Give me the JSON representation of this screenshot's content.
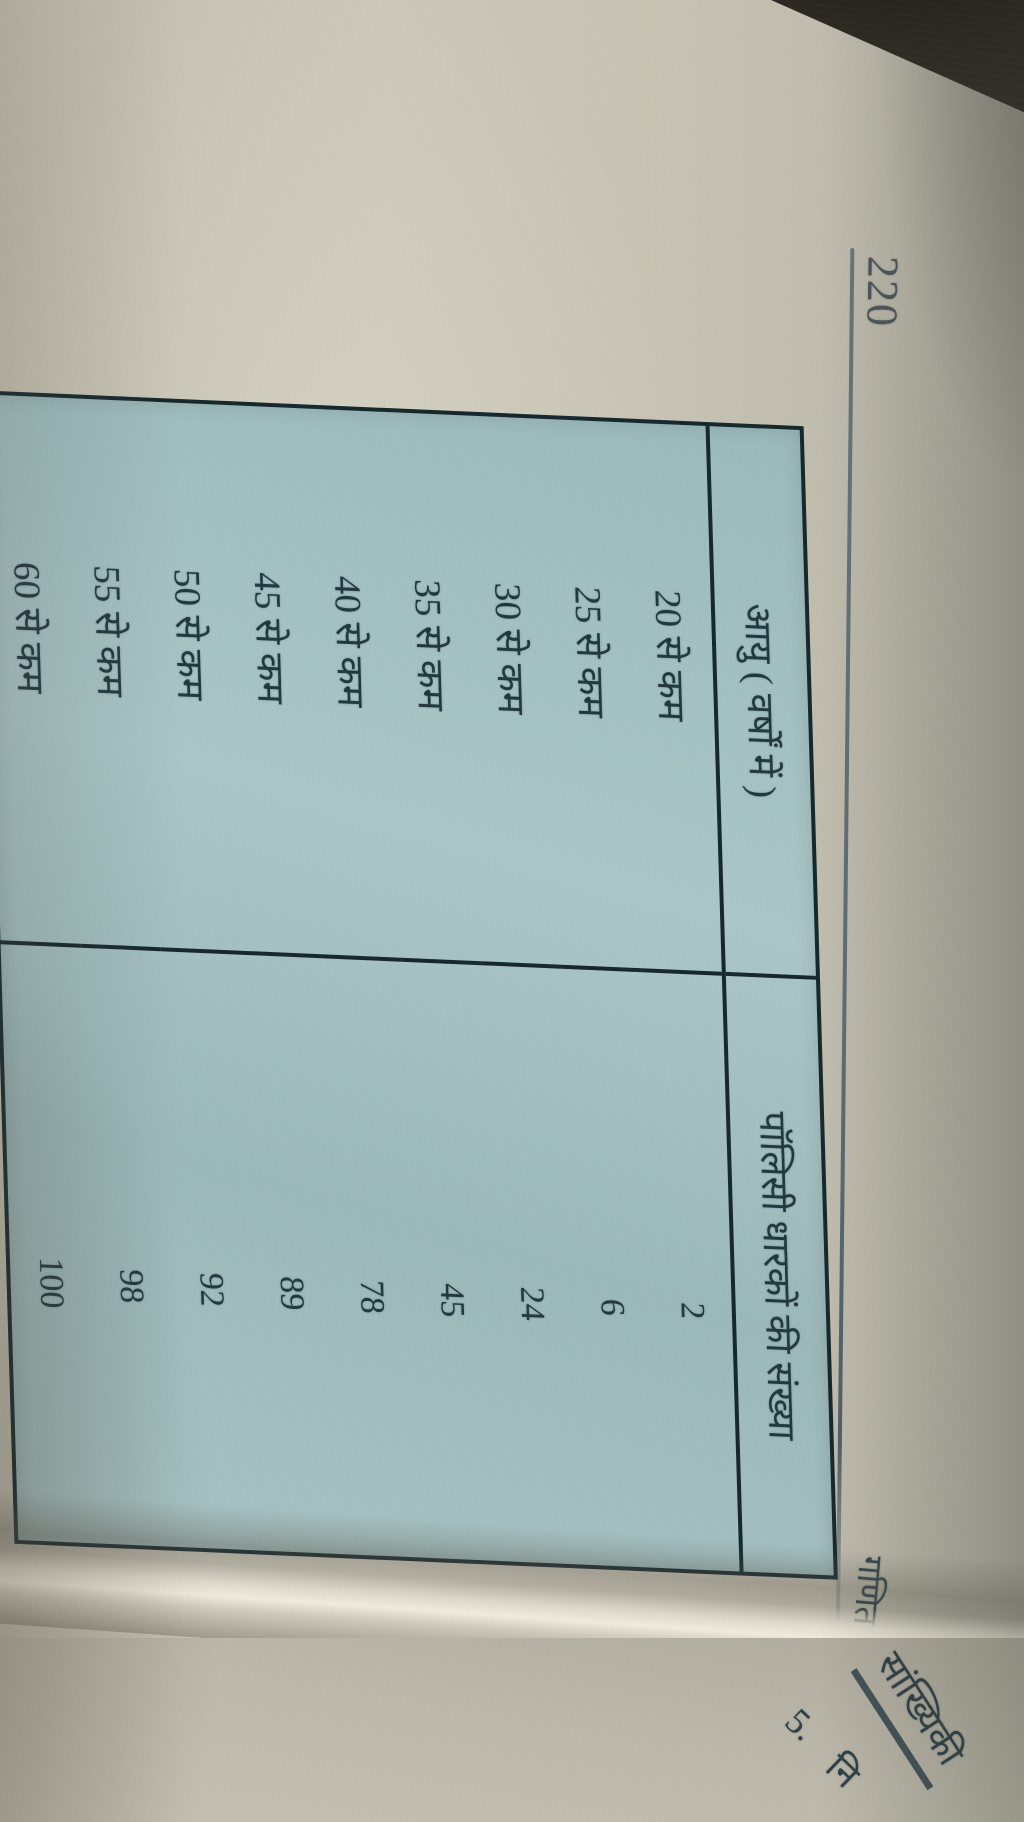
{
  "photo": {
    "left_page": {
      "page_number": "220",
      "running_head": "गणित"
    },
    "right_page": {
      "chapter_head": "सांख्यिकी",
      "question_number": "5.",
      "question_partial": "नि"
    },
    "table": {
      "col1_header": "आयु ( वर्षों में )",
      "col2_header": "पॉलिसी धारकों की संख्या",
      "rows": [
        {
          "label": "20 से कम",
          "value": "2"
        },
        {
          "label": "25 से कम",
          "value": "6"
        },
        {
          "label": "30 से कम",
          "value": "24"
        },
        {
          "label": "35 से कम",
          "value": "45"
        },
        {
          "label": "40 से कम",
          "value": "78"
        },
        {
          "label": "45 से कम",
          "value": "89"
        },
        {
          "label": "50 से कम",
          "value": "92"
        },
        {
          "label": "55 से कम",
          "value": "98"
        },
        {
          "label": "60 से कम",
          "value": "100"
        }
      ]
    },
    "colors": {
      "table_fill": "#a3bfc0",
      "table_border": "#16282c",
      "ink": "#22383f",
      "page_paper": "#c6c2b3",
      "background_dark": "#2b2822"
    }
  },
  "chart_data": {
    "type": "table",
    "title": "",
    "columns": [
      "आयु ( वर्षों में )",
      "पॉलिसी धारकों की संख्या"
    ],
    "categories": [
      "20 से कम",
      "25 से कम",
      "30 से कम",
      "35 से कम",
      "40 से कम",
      "45 से कम",
      "50 से कम",
      "55 से कम",
      "60 से कम"
    ],
    "values": [
      2,
      6,
      24,
      45,
      78,
      89,
      92,
      98,
      100
    ]
  }
}
